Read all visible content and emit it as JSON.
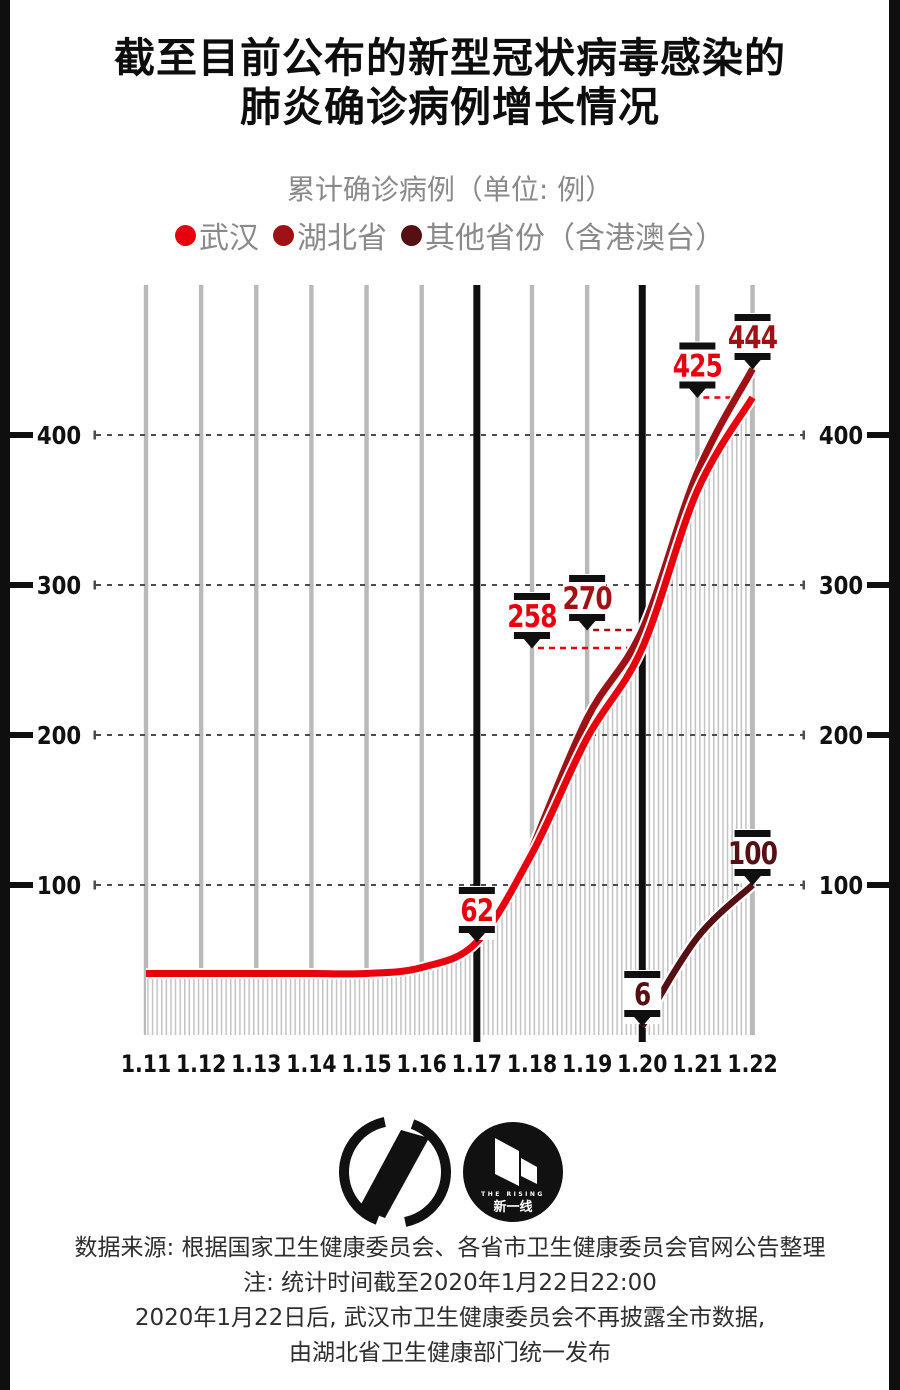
{
  "page": {
    "title_line1": "截至目前公布的新型冠状病毒感染的",
    "title_line2": "肺炎确诊病例增长情况",
    "subtitle": "累计确诊病例（单位: 例）"
  },
  "chart_data": {
    "type": "line",
    "title": "截至目前公布的新型冠状病毒感染的肺炎确诊病例增长情况",
    "subtitle": "累计确诊病例（单位: 例）",
    "categories": [
      "1.11",
      "1.12",
      "1.13",
      "1.14",
      "1.15",
      "1.16",
      "1.17",
      "1.18",
      "1.19",
      "1.20",
      "1.21",
      "1.22"
    ],
    "series": [
      {
        "name": "武汉",
        "color": "#e8000f",
        "start_index": 0,
        "values": [
          41,
          41,
          41,
          41,
          41,
          45,
          62,
          121,
          198,
          258,
          363,
          425
        ]
      },
      {
        "name": "湖北省",
        "color": "#9e1216",
        "start_index": 7,
        "values": [
          124,
          211,
          270,
          375,
          444
        ]
      },
      {
        "name": "其他省份（含港澳台）",
        "color": "#551013",
        "start_index": 9,
        "values": [
          6,
          65,
          100
        ]
      }
    ],
    "annotations": [
      {
        "label": "62",
        "x_index": 6,
        "value": 62,
        "series": 0
      },
      {
        "label": "258",
        "x_index": 7,
        "value": 258,
        "series": 0,
        "leader_to_index": 9
      },
      {
        "label": "270",
        "x_index": 8,
        "value": 270,
        "series": 1,
        "leader_to_index": 9
      },
      {
        "label": "6",
        "x_index": 9,
        "value": 6,
        "series": 2
      },
      {
        "label": "425",
        "x_index": 10,
        "value": 425,
        "series": 0,
        "leader_to_index": 11
      },
      {
        "label": "444",
        "x_index": 11,
        "value": 444,
        "series": 1
      },
      {
        "label": "100",
        "x_index": 11,
        "value": 100,
        "series": 2
      }
    ],
    "y_ticks": [
      100,
      200,
      300,
      400
    ],
    "ylim": [
      0,
      500
    ],
    "highlight_indices": [
      6,
      9
    ],
    "grid": "vertical-gray-plus-dashed-horizontal",
    "legend_position": "top"
  },
  "footer": {
    "lines": [
      "数据来源: 根据国家卫生健康委员会、各省市卫生健康委员会官网公告整理",
      "注: 统计时间截至2020年1月22日22:00",
      "2020年1月22日后, 武汉市卫生健康委员会不再披露全市数据,",
      "由湖北省卫生健康部门统一发布"
    ],
    "logos": {
      "rising_text_en": "THE RISING",
      "rising_text_cn": "新一线"
    }
  }
}
